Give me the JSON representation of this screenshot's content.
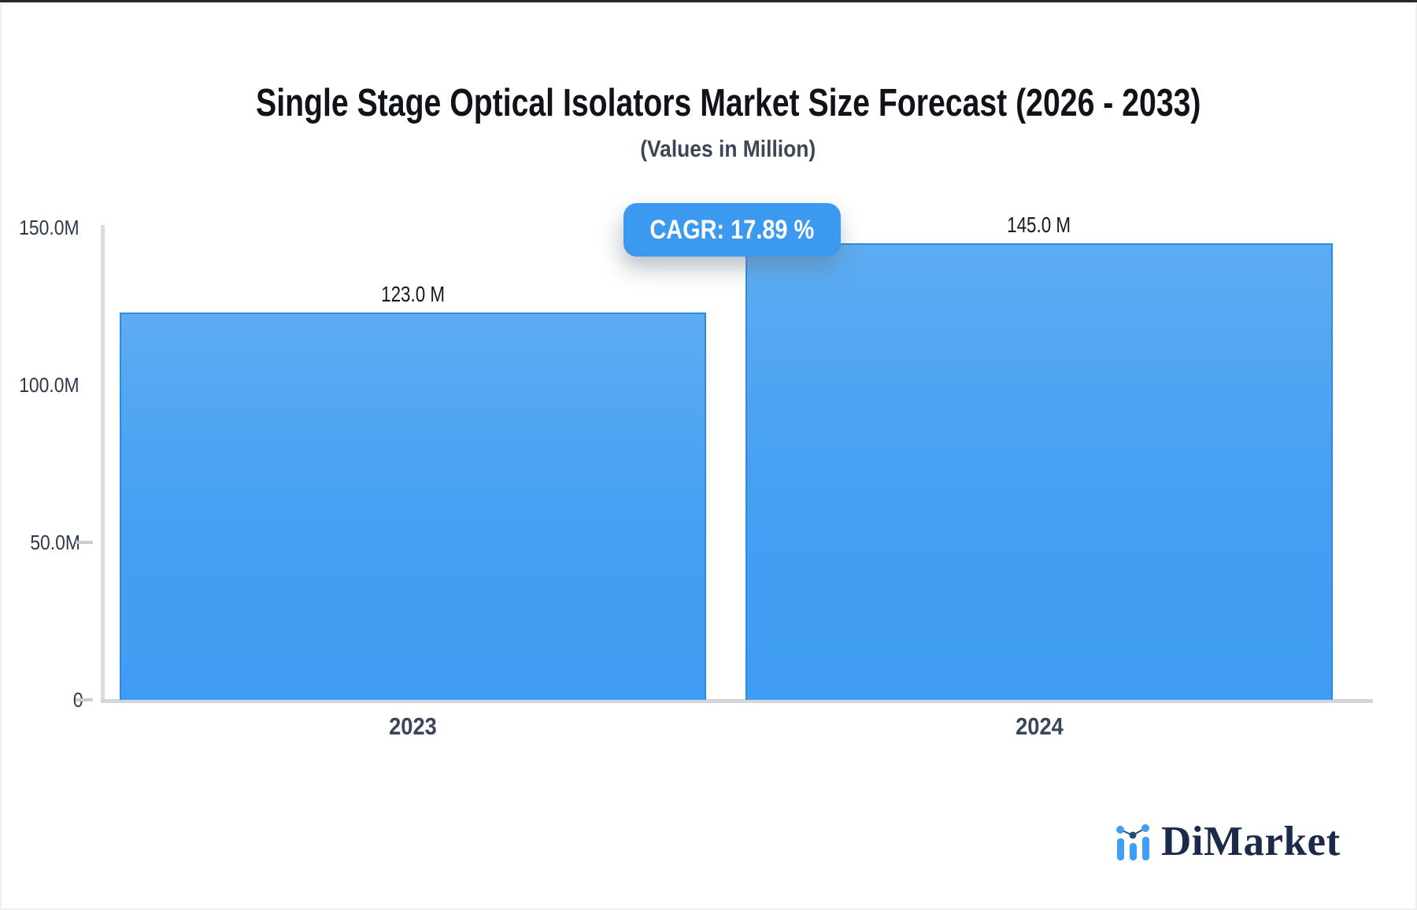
{
  "header": {
    "title": "Single Stage Optical Isolators Market Size Forecast (2026 - 2033)",
    "subtitle": "(Values in Million)"
  },
  "cagr_badge": {
    "label": "CAGR: 17.89 %"
  },
  "chart_data": {
    "type": "bar",
    "title": "Single Stage Optical Isolators Market Size Forecast (2026 - 2033)",
    "subtitle": "(Values in Million)",
    "categories": [
      "2023",
      "2024"
    ],
    "values": [
      123.0,
      145.0
    ],
    "bar_value_labels": [
      "123.0 M",
      "145.0 M"
    ],
    "cagr_percent": 17.89,
    "ylim": [
      0,
      150
    ],
    "yticks": [
      {
        "label": "150.0M",
        "value": 150,
        "dash": false
      },
      {
        "label": "100.0M",
        "value": 100,
        "dash": false
      },
      {
        "label": "50.0M",
        "value": 50,
        "dash": true
      },
      {
        "label": "0",
        "value": 0,
        "dash": true
      }
    ],
    "grid": false,
    "legend": false,
    "bar_fill_top": "#5cacf2",
    "bar_fill_bottom": "#3f9df3",
    "bar_border_color": "#2e8ae2",
    "axis_color": "#d2d6dc"
  },
  "branding": {
    "name": "DiMarket"
  }
}
